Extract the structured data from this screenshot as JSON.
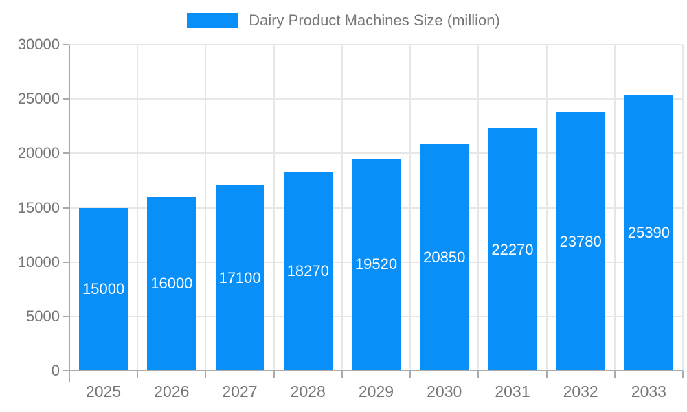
{
  "legend": {
    "label": "Dairy Product Machines Size (million)",
    "swatch_color": "#0890f8"
  },
  "chart_data": {
    "type": "bar",
    "title": "Dairy Product Machines Size (million)",
    "categories": [
      "2025",
      "2026",
      "2027",
      "2028",
      "2029",
      "2030",
      "2031",
      "2032",
      "2033"
    ],
    "values": [
      15000,
      16000,
      17100,
      18270,
      19520,
      20850,
      22270,
      23780,
      25390
    ],
    "xlabel": "",
    "ylabel": "",
    "ylim": [
      0,
      30000
    ],
    "yticks": [
      0,
      5000,
      10000,
      15000,
      20000,
      25000,
      30000
    ],
    "grid": true,
    "legend_position": "top",
    "bar_color": "#0890f8",
    "bar_label_color": "#ffffff",
    "axis_color": "#ababab",
    "gridline_color": "#e7e7e7",
    "tick_label_color": "#757575"
  }
}
